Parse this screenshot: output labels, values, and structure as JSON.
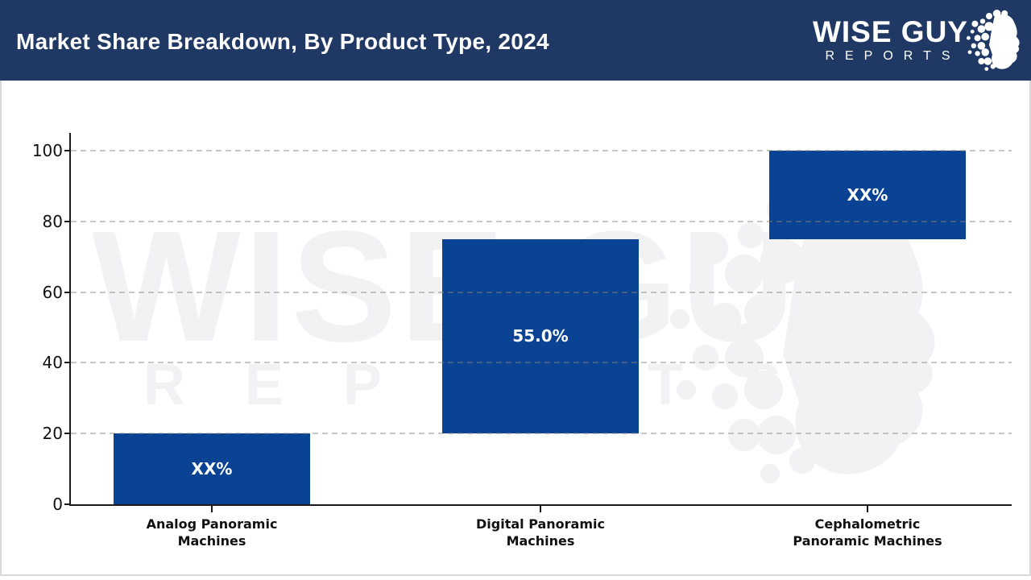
{
  "header": {
    "title": "Market Share Breakdown, By Product Type, 2024",
    "logo": {
      "line1": "WISE GUY",
      "line2": "REPORTS"
    }
  },
  "watermark": {
    "line1": "WISE GUY",
    "line2": "REPORTS"
  },
  "colors": {
    "header_bg": "#1f3864",
    "bar": "#0a4394",
    "bar_label": "#ffffff",
    "grid": "#d5d5d5",
    "axis": "#1a1a1a",
    "watermark": "#f2f2f4"
  },
  "chart_data": {
    "type": "bar",
    "subtype": "waterfall",
    "title": "Market Share Breakdown, By Product Type, 2024",
    "categories": [
      "Analog Panoramic Machines",
      "Digital Panoramic Machines",
      "Cephalometric Panoramic Machines"
    ],
    "category_lines": [
      [
        "Analog Panoramic",
        "Machines"
      ],
      [
        "Digital Panoramic",
        "Machines"
      ],
      [
        "Cephalometric",
        "Panoramic Machines"
      ]
    ],
    "segments": [
      {
        "category": "Analog Panoramic Machines",
        "from": 0,
        "to": 20,
        "label": "XX%"
      },
      {
        "category": "Digital Panoramic Machines",
        "from": 20,
        "to": 75,
        "label": "55.0%"
      },
      {
        "category": "Cephalometric Panoramic Machines",
        "from": 75,
        "to": 100,
        "label": "XX%"
      }
    ],
    "xlabel": "",
    "ylabel": "",
    "ylim": [
      0,
      100
    ],
    "yticks": [
      0,
      20,
      40,
      60,
      80,
      100
    ],
    "grid": "horizontal-dashed",
    "legend": "none"
  }
}
